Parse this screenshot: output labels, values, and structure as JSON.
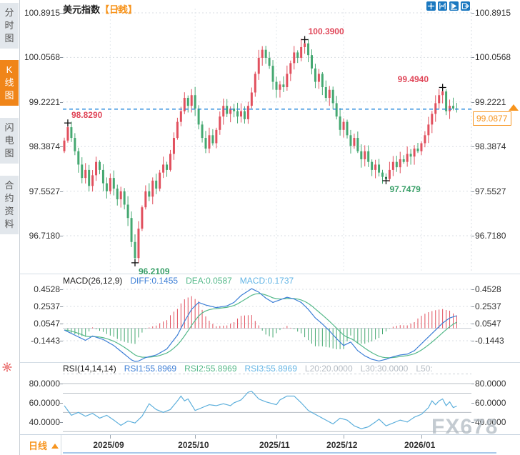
{
  "header": {
    "title": "美元指数",
    "period_tag": "【日线】",
    "add_icon": "⊕"
  },
  "sidebar": {
    "items": [
      {
        "label": "分时图",
        "active": false
      },
      {
        "label": "K线图",
        "active": true
      },
      {
        "label": "闪电图",
        "active": false
      },
      {
        "label": "合约资料",
        "active": false
      }
    ]
  },
  "toolbar": {
    "icons": [
      "crosshair",
      "axis-scale",
      "auto-scale",
      "collapse-right"
    ]
  },
  "colors": {
    "up_red": "#e1505e",
    "down_green": "#45a871",
    "diff_blue": "#3d7fd6",
    "dea_green": "#55b98a",
    "macd_lightblue": "#64b5e5",
    "rsi_line": "#5fb0dc",
    "accent_orange": "#f7941d",
    "price_line_blue": "#2186dd",
    "annot_red": "#e0485a",
    "annot_green": "#3aa069",
    "grid_dotted": "#d9dee3",
    "rsi_grid": "#b9bfc6",
    "legend_muted": "#b5bcc4"
  },
  "price_box": {
    "value": "99.0877"
  },
  "bottom": {
    "period_label": "日线"
  },
  "watermark": "FX678",
  "chart_data": [
    {
      "type": "candlestick",
      "title": "美元指数 日线",
      "y_axis": [
        {
          "label": "100.8915",
          "value": 100.8915
        },
        {
          "label": "100.0568",
          "value": 100.0568
        },
        {
          "label": "99.2221",
          "value": 99.2221
        },
        {
          "label": "98.3874",
          "value": 98.3874
        },
        {
          "label": "97.5527",
          "value": 97.5527
        },
        {
          "label": "96.7180",
          "value": 96.718
        }
      ],
      "ylim": [
        96.08,
        101.0
      ],
      "x_ticks": [
        {
          "label": "2025/09",
          "index": 13
        },
        {
          "label": "2025/10",
          "index": 37
        },
        {
          "label": "2025/11",
          "index": 60
        },
        {
          "label": "2025/12",
          "index": 79
        },
        {
          "label": "2026/01",
          "index": 101
        }
      ],
      "first_open": 98.3,
      "closes": [
        98.5,
        98.75,
        98.55,
        98.3,
        98.05,
        97.8,
        97.95,
        97.65,
        97.85,
        98.1,
        97.95,
        97.7,
        97.55,
        97.8,
        97.6,
        97.4,
        97.55,
        97.3,
        97.05,
        96.6,
        96.3,
        96.85,
        97.25,
        97.55,
        97.45,
        97.75,
        97.6,
        97.9,
        98.05,
        97.95,
        98.25,
        98.55,
        98.85,
        99.05,
        99.3,
        99.15,
        99.35,
        99.1,
        98.8,
        98.55,
        98.35,
        98.6,
        98.45,
        98.7,
        98.95,
        99.15,
        99.0,
        99.1,
        99.05,
        98.95,
        99.05,
        98.9,
        99.15,
        99.4,
        99.75,
        100.05,
        100.2,
        100.05,
        99.9,
        99.6,
        99.45,
        99.55,
        99.5,
        99.75,
        99.95,
        100.15,
        100.05,
        100.25,
        100.32,
        100.1,
        99.85,
        99.6,
        99.75,
        99.5,
        99.3,
        99.45,
        99.2,
        98.95,
        98.7,
        98.85,
        98.6,
        98.4,
        98.55,
        98.3,
        98.15,
        98.3,
        98.1,
        97.95,
        98.05,
        97.9,
        97.82,
        97.78,
        97.95,
        98.1,
        98.0,
        98.15,
        98.1,
        98.25,
        98.2,
        98.35,
        98.3,
        98.45,
        98.6,
        98.8,
        99.0,
        99.2,
        99.35,
        99.42,
        99.05,
        99.15,
        99.1,
        99.09
      ],
      "current_price": 99.0877,
      "annotations": [
        {
          "index": 1,
          "price": 98.829,
          "kind": "high",
          "label": "98.8290",
          "color": "#e0485a"
        },
        {
          "index": 20,
          "price": 96.2109,
          "kind": "low",
          "label": "96.2109",
          "color": "#3aa069"
        },
        {
          "index": 68,
          "price": 100.39,
          "kind": "high",
          "label": "100.3900",
          "color": "#e0485a"
        },
        {
          "index": 91,
          "price": 97.7479,
          "kind": "low",
          "label": "97.7479",
          "color": "#3aa069"
        },
        {
          "index": 107,
          "price": 99.494,
          "kind": "high",
          "label": "99.4940",
          "color": "#e0485a"
        }
      ]
    },
    {
      "type": "macd",
      "params_label": "MACD(26,12,9)",
      "legend": [
        {
          "label": "DIFF:0.1455",
          "color": "#3d7fd6"
        },
        {
          "label": "DEA:0.0587",
          "color": "#55b98a"
        },
        {
          "label": "MACD:0.1737",
          "color": "#64b5e5"
        }
      ],
      "y_axis": [
        {
          "label": "0.4528",
          "value": 0.4528
        },
        {
          "label": "0.2537",
          "value": 0.2537
        },
        {
          "label": "0.0547",
          "value": 0.0547
        },
        {
          "label": "-0.1443",
          "value": -0.1443
        }
      ],
      "ylim": [
        -0.39,
        0.5
      ],
      "diff_keypoints": [
        [
          0,
          -0.02
        ],
        [
          3,
          -0.08
        ],
        [
          6,
          -0.14
        ],
        [
          8,
          -0.09
        ],
        [
          11,
          -0.13
        ],
        [
          14,
          -0.2
        ],
        [
          17,
          -0.3
        ],
        [
          20,
          -0.4
        ],
        [
          23,
          -0.34
        ],
        [
          26,
          -0.31
        ],
        [
          29,
          -0.24
        ],
        [
          32,
          -0.08
        ],
        [
          34,
          0.08
        ],
        [
          36,
          0.22
        ],
        [
          38,
          0.3
        ],
        [
          40,
          0.27
        ],
        [
          43,
          0.24
        ],
        [
          46,
          0.26
        ],
        [
          48,
          0.3
        ],
        [
          50,
          0.38
        ],
        [
          53,
          0.46
        ],
        [
          55,
          0.42
        ],
        [
          57,
          0.35
        ],
        [
          59,
          0.3
        ],
        [
          61,
          0.33
        ],
        [
          63,
          0.36
        ],
        [
          65,
          0.34
        ],
        [
          67,
          0.3
        ],
        [
          69,
          0.22
        ],
        [
          71,
          0.12
        ],
        [
          73,
          0.05
        ],
        [
          75,
          -0.03
        ],
        [
          77,
          -0.12
        ],
        [
          79,
          -0.2
        ],
        [
          81,
          -0.16
        ],
        [
          83,
          -0.26
        ],
        [
          85,
          -0.32
        ],
        [
          87,
          -0.36
        ],
        [
          89,
          -0.38
        ],
        [
          91,
          -0.36
        ],
        [
          93,
          -0.33
        ],
        [
          95,
          -0.31
        ],
        [
          97,
          -0.3
        ],
        [
          99,
          -0.26
        ],
        [
          101,
          -0.18
        ],
        [
          103,
          -0.1
        ],
        [
          105,
          -0.02
        ],
        [
          107,
          0.06
        ],
        [
          109,
          0.12
        ],
        [
          111,
          0.1455
        ]
      ],
      "dea_alpha": 0.25,
      "hist_multiplier": 2
    },
    {
      "type": "rsi",
      "params_label": "RSI(14,14,14)",
      "legend": [
        {
          "label": "RSI1:55.8969",
          "color": "#3d7fd6"
        },
        {
          "label": "RSI2:55.8969",
          "color": "#55b98a"
        },
        {
          "label": "RSI3:55.8969",
          "color": "#64b5e5"
        },
        {
          "label": "L20:20.0000",
          "color": "#b5bcc4"
        },
        {
          "label": "L30:30.0000",
          "color": "#b5bcc4"
        },
        {
          "label": "L50:",
          "color": "#b5bcc4"
        }
      ],
      "y_axis": [
        {
          "label": "80.0000",
          "value": 80
        },
        {
          "label": "60.0000",
          "value": 60
        },
        {
          "label": "40.0000",
          "value": 40
        }
      ],
      "levels_solid": [
        80,
        70,
        50,
        30
      ],
      "levels_dashed": [
        90
      ],
      "keypoints": [
        [
          0,
          57
        ],
        [
          2,
          47
        ],
        [
          4,
          50
        ],
        [
          6,
          46
        ],
        [
          8,
          49
        ],
        [
          10,
          44
        ],
        [
          12,
          47
        ],
        [
          14,
          42
        ],
        [
          16,
          36.5
        ],
        [
          18,
          41
        ],
        [
          20,
          39
        ],
        [
          22,
          46
        ],
        [
          24,
          59
        ],
        [
          26,
          53
        ],
        [
          28,
          50
        ],
        [
          30,
          53
        ],
        [
          32,
          62
        ],
        [
          33,
          67
        ],
        [
          34,
          62
        ],
        [
          35,
          64
        ],
        [
          37,
          52
        ],
        [
          39,
          55
        ],
        [
          41,
          58
        ],
        [
          43,
          57
        ],
        [
          45,
          59
        ],
        [
          47,
          57
        ],
        [
          48,
          60
        ],
        [
          50,
          63
        ],
        [
          52,
          71
        ],
        [
          53,
          72
        ],
        [
          55,
          64
        ],
        [
          57,
          61
        ],
        [
          58,
          60
        ],
        [
          60,
          58
        ],
        [
          61,
          63
        ],
        [
          63,
          67
        ],
        [
          65,
          67
        ],
        [
          67,
          60
        ],
        [
          69,
          52
        ],
        [
          71,
          48
        ],
        [
          73,
          44
        ],
        [
          75,
          40
        ],
        [
          76,
          38
        ],
        [
          78,
          44
        ],
        [
          80,
          42
        ],
        [
          82,
          36
        ],
        [
          84,
          33
        ],
        [
          86,
          35
        ],
        [
          88,
          40
        ],
        [
          89,
          43
        ],
        [
          91,
          36
        ],
        [
          93,
          39
        ],
        [
          95,
          42
        ],
        [
          97,
          40
        ],
        [
          99,
          45
        ],
        [
          101,
          48
        ],
        [
          103,
          55
        ],
        [
          104,
          62
        ],
        [
          105,
          58
        ],
        [
          106,
          62
        ],
        [
          107,
          64
        ],
        [
          108,
          57
        ],
        [
          109,
          61
        ],
        [
          110,
          55
        ],
        [
          111,
          56.5
        ]
      ]
    }
  ]
}
